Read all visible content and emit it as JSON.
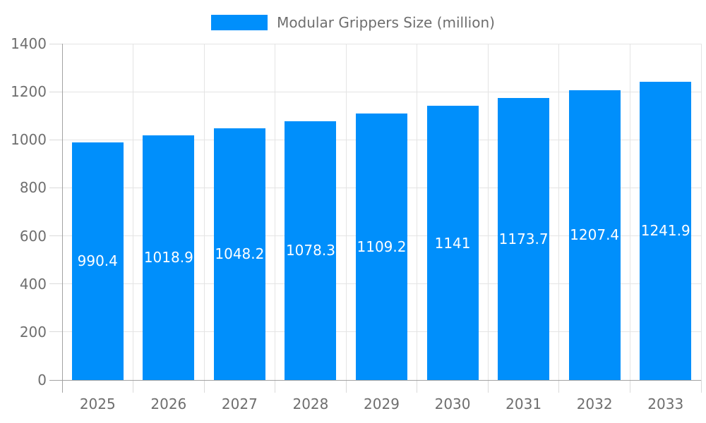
{
  "legend": {
    "label": "Modular Grippers Size (million)",
    "swatch_color": "#008FFB"
  },
  "colors": {
    "bar": "#008FFB",
    "axis_line": "#a2a2a2",
    "gridline": "#e4e4e4",
    "tick_mark": "#dadada",
    "axis_text": "#6e6e6e",
    "value_text": "#ffffff",
    "background": "#ffffff"
  },
  "chart_data": {
    "type": "bar",
    "title": "Modular Grippers Size (million)",
    "series": [
      {
        "name": "Modular Grippers Size (million)",
        "values": [
          990.4,
          1018.9,
          1048.2,
          1078.3,
          1109.2,
          1141,
          1173.7,
          1207.4,
          1241.9
        ]
      }
    ],
    "categories": [
      "2025",
      "2026",
      "2027",
      "2028",
      "2029",
      "2030",
      "2031",
      "2032",
      "2033"
    ],
    "value_labels": [
      "990.4",
      "1018.9",
      "1048.2",
      "1078.3",
      "1109.2",
      "1141",
      "1173.7",
      "1207.4",
      "1241.9"
    ],
    "xlabel": "",
    "ylabel": "",
    "ylim": [
      0,
      1400
    ],
    "yticks": [
      0,
      200,
      400,
      600,
      800,
      1000,
      1200,
      1400
    ],
    "grid": true,
    "legend_position": "top",
    "value_label_position": "inside-center"
  }
}
